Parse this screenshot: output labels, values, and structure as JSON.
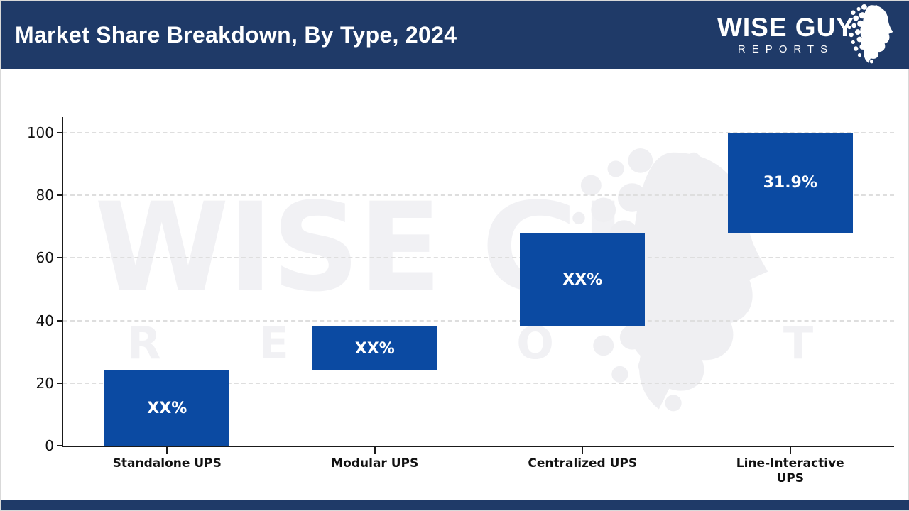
{
  "header": {
    "title": "Market Share Breakdown, By Type, 2024",
    "logo": {
      "line1": "WISE GUY",
      "line2": "REPORTS"
    }
  },
  "watermark": {
    "line1": "WISE GUY",
    "line2": "R E P O R T S"
  },
  "colors": {
    "header_bg": "#1f3a68",
    "footer_bg": "#1f3a68",
    "bar": "#0b4aa2",
    "bar_label": "#ffffff",
    "gridline": "#dedede",
    "axis": "#1a1a1a",
    "watermark": "#f1f1f4"
  },
  "chart_data": {
    "type": "bar",
    "subtype": "waterfall-floating-bars",
    "title": "Market Share Breakdown, By Type, 2024",
    "categories": [
      "Standalone UPS",
      "Modular UPS",
      "Centralized UPS",
      "Line-Interactive UPS"
    ],
    "segments": [
      {
        "category": "Standalone UPS",
        "start": 0,
        "end": 24,
        "value": 24,
        "label": "XX%"
      },
      {
        "category": "Modular UPS",
        "start": 24,
        "end": 38,
        "value": 14,
        "label": "XX%"
      },
      {
        "category": "Centralized UPS",
        "start": 38,
        "end": 68.1,
        "value": 30.1,
        "label": "XX%"
      },
      {
        "category": "Line-Interactive UPS",
        "start": 68.1,
        "end": 100,
        "value": 31.9,
        "label": "31.9%"
      }
    ],
    "xlabel": "",
    "ylabel": "",
    "y_ticks": [
      0,
      20,
      40,
      60,
      80,
      100
    ],
    "ylim": [
      0,
      105
    ],
    "grid": "horizontal-dashed",
    "legend": "none"
  }
}
